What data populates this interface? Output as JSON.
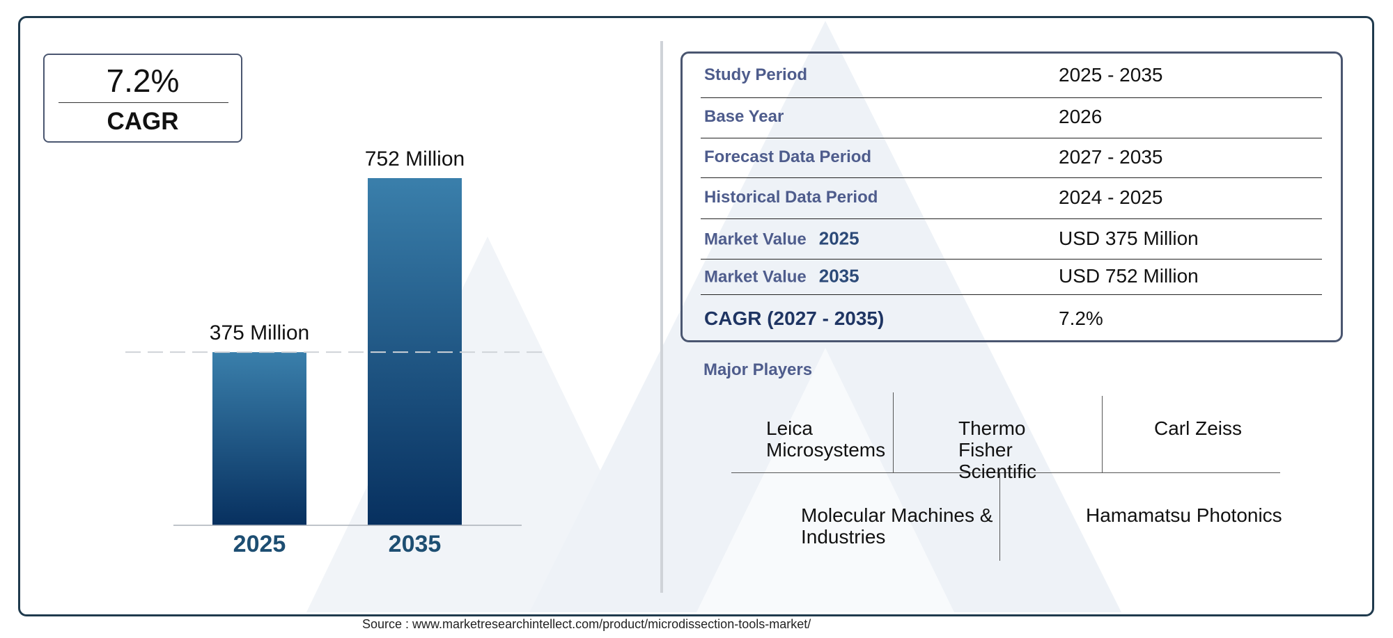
{
  "cagr_box": {
    "value": "7.2%",
    "label": "CAGR"
  },
  "chart_data": {
    "type": "bar",
    "categories": [
      "2025",
      "2035"
    ],
    "values": [
      375,
      752
    ],
    "data_labels": [
      "375 Million",
      "752 Million"
    ],
    "unit": "Million",
    "bar_color_top": "#3a7fab",
    "bar_color_bottom": "#07305f",
    "tick_color": "#1d4e72",
    "reference_line": {
      "value": 375,
      "style": "dashed"
    },
    "grid": false
  },
  "summary_table": [
    {
      "label": "Study Period",
      "value": "2025 - 2035"
    },
    {
      "label": "Base Year",
      "value": "2026"
    },
    {
      "label": "Forecast Data Period",
      "value": "2027 - 2035"
    },
    {
      "label": "Historical Data Period",
      "value": "2024 - 2025"
    },
    {
      "label": "Market Value",
      "year": "2025",
      "value": "USD 375 Million"
    },
    {
      "label": "Market Value",
      "year": "2035",
      "value": "USD 752 Million"
    },
    {
      "label": "CAGR (2027 - 2035)",
      "value": "7.2%"
    }
  ],
  "major_players": {
    "title": "Major Players",
    "items": [
      "Leica Microsystems",
      "Thermo Fisher Scientific",
      "Carl Zeiss",
      "Molecular Machines & Industries",
      "Hamamatsu Photonics"
    ]
  },
  "source": "Source : www.marketresearchintellect.com/product/microdissection-tools-market/",
  "colors": {
    "frame": "#1f3a4d",
    "label": "#4e5c8c",
    "watermark": "#eef2f7"
  }
}
